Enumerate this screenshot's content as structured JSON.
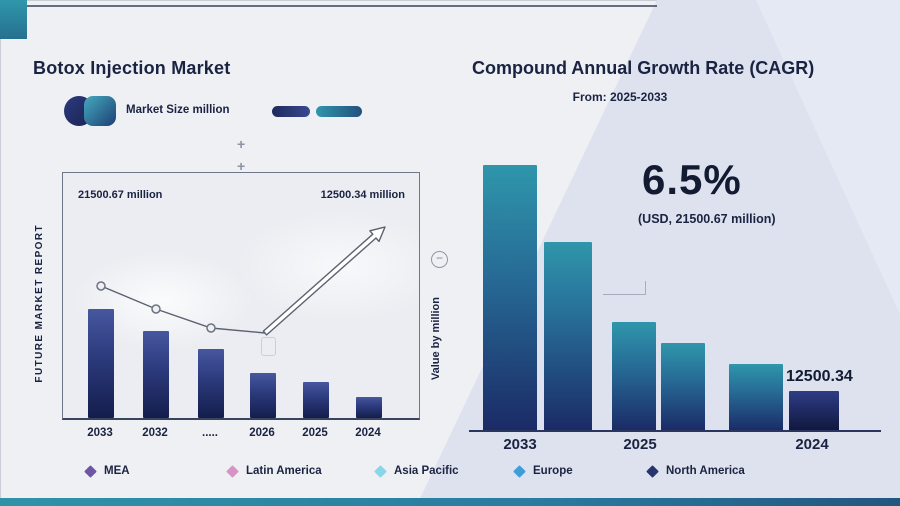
{
  "icons": {
    "plus": "+",
    "minus": "−"
  },
  "colors": {
    "teal": "#2f96ab",
    "navy": "#1b2a66",
    "deep_navy": "#131c49",
    "text": "#1b2342",
    "band": "#dde2ee",
    "left_bar_top": "#47579f",
    "left_bar_bottom": "#141d4c"
  },
  "legend": [
    {
      "label": "MEA",
      "color": "#6f55a5"
    },
    {
      "label": "Latin America",
      "color": "#d893c6"
    },
    {
      "label": "Asia Pacific",
      "color": "#86d7ea"
    },
    {
      "label": "Europe",
      "color": "#3f9ed9"
    },
    {
      "label": "North America",
      "color": "#27356f"
    }
  ],
  "chart_data": [
    {
      "type": "bar",
      "title": "Botox Injection Market",
      "series_name": "Market Size million",
      "side_label": "FUTURE MARKET REPORT",
      "categories": [
        "2033",
        "2032",
        ".....",
        "2026",
        "2025",
        "2024"
      ],
      "bar_heights_pct": [
        44,
        35,
        28,
        18,
        14.5,
        8.5
      ],
      "value_annotations": [
        {
          "label": "21500.67 million",
          "refers_to": "2033",
          "position": "top-left"
        },
        {
          "label": "12500.34 million",
          "refers_to": "2024",
          "position": "top-right"
        }
      ],
      "trend_overlay": "circle markers descending from 2033 to 2026, then outlined arrow rising sharply to upper right",
      "grid": false,
      "y_axis": "unlabeled"
    },
    {
      "type": "bar",
      "title": "Compound Annual Growth Rate (CAGR)",
      "subtitle": "From: 2025-2033",
      "cagr": "6.5%",
      "cagr_note": "(USD, 21500.67 million)",
      "ylabel": "Value by million",
      "categories": [
        "2033",
        "2025",
        "2024"
      ],
      "bars_per_category": 2,
      "bar_heights_pct": [
        [
          100,
          71
        ],
        [
          41,
          33
        ],
        [
          25,
          15
        ]
      ],
      "value_annotations": [
        {
          "label": "12500.34",
          "refers_to": "2024",
          "position": "right-of-bars"
        }
      ],
      "grid": false,
      "y_axis": "unlabeled"
    }
  ]
}
